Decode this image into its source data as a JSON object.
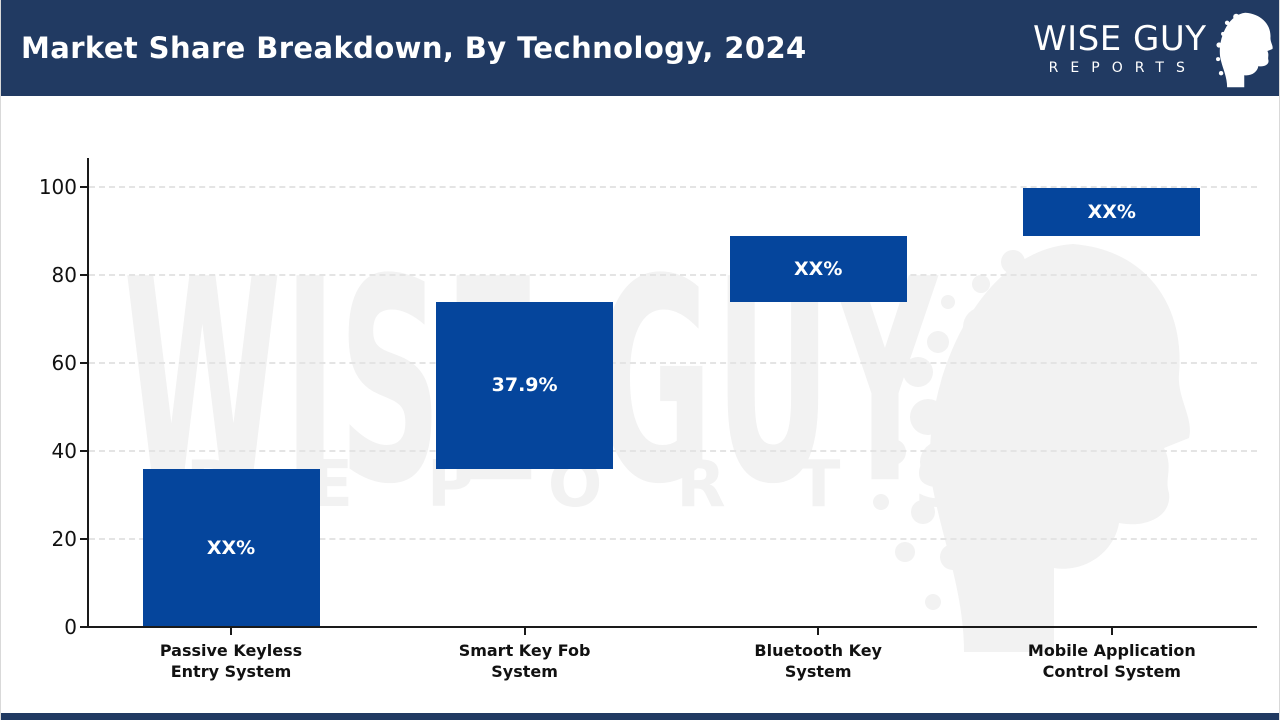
{
  "header": {
    "title": "Market Share Breakdown, By Technology, 2024"
  },
  "logo": {
    "line1": "WISE GUY",
    "line2": "REPORTS"
  },
  "watermark": {
    "line1": "WISE GUY",
    "line2": "REPORTS"
  },
  "chart_data": {
    "type": "bar",
    "subtype": "waterfall",
    "title": "Market Share Breakdown, By Technology, 2024",
    "xlabel": "",
    "ylabel": "",
    "ylim": [
      0,
      106
    ],
    "yticks": [
      0,
      20,
      40,
      60,
      80,
      100
    ],
    "grid": true,
    "gridline_color": "#e4e4e4",
    "bar_color": "#05459c",
    "categories": [
      "Passive Keyless\nEntry System",
      "Smart Key Fob\nSystem",
      "Bluetooth Key\nSystem",
      "Mobile Application\nControl System"
    ],
    "segments": [
      {
        "category": "Passive Keyless\nEntry System",
        "start": 0,
        "end": 36,
        "label": "XX%"
      },
      {
        "category": "Smart Key Fob\nSystem",
        "start": 36,
        "end": 73.9,
        "label": "37.9%"
      },
      {
        "category": "Bluetooth Key\nSystem",
        "start": 73.9,
        "end": 88.9,
        "label": "XX%"
      },
      {
        "category": "Mobile Application\nControl System",
        "start": 88.9,
        "end": 99.8,
        "label": "XX%"
      }
    ]
  }
}
